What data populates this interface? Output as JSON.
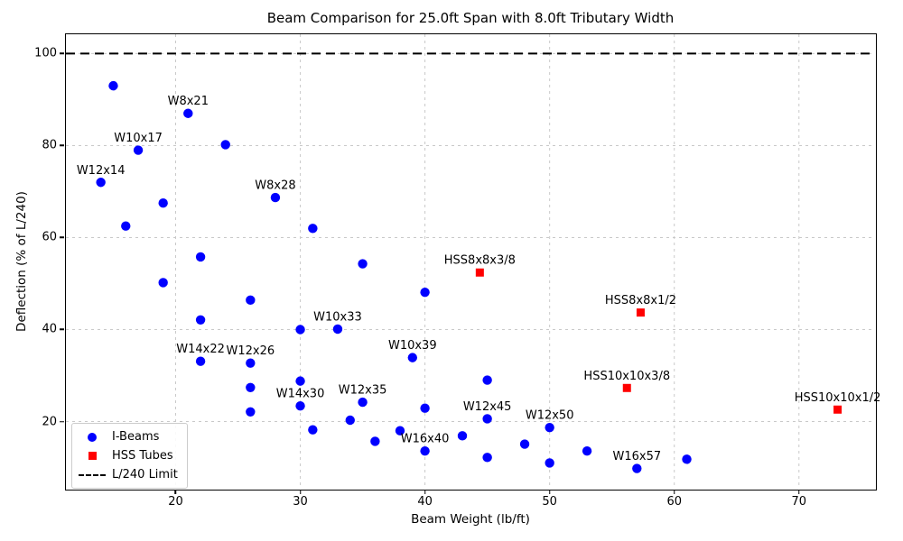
{
  "chart_data": {
    "type": "scatter",
    "title": "Beam Comparison for 25.0ft Span with 8.0ft Tributary Width",
    "xlabel": "Beam Weight (lb/ft)",
    "ylabel": "Deflection (% of L/240)",
    "xlim": [
      11.2,
      76.1
    ],
    "ylim": [
      5.4,
      104.2
    ],
    "xticks": [
      20,
      30,
      40,
      50,
      60,
      70
    ],
    "yticks": [
      20,
      40,
      60,
      80,
      100
    ],
    "grid": true,
    "grid_color": "#c9c9c9",
    "limit_line": {
      "y": 100,
      "label": "L/240 Limit",
      "color": "#000000",
      "style": "dashed"
    },
    "legend": {
      "position": "lower-left",
      "entries": [
        {
          "label": "I-Beams",
          "marker": "circle",
          "color": "#0000ff"
        },
        {
          "label": "HSS Tubes",
          "marker": "square",
          "color": "#ff0000"
        },
        {
          "label": "L/240 Limit",
          "marker": "dashed-line",
          "color": "#000000"
        }
      ]
    },
    "series": [
      {
        "name": "I-Beams",
        "marker": "circle",
        "color": "#0000ff",
        "points": [
          {
            "x": 14,
            "y": 72.0,
            "label": "W12x14"
          },
          {
            "x": 15,
            "y": 93.0
          },
          {
            "x": 16,
            "y": 62.5
          },
          {
            "x": 17,
            "y": 79.0,
            "label": "W10x17"
          },
          {
            "x": 19,
            "y": 67.5
          },
          {
            "x": 19,
            "y": 50.2
          },
          {
            "x": 21,
            "y": 87.0,
            "label": "W8x21"
          },
          {
            "x": 22,
            "y": 55.8
          },
          {
            "x": 22,
            "y": 42.1
          },
          {
            "x": 22,
            "y": 33.1,
            "label": "W14x22"
          },
          {
            "x": 24,
            "y": 80.2
          },
          {
            "x": 26,
            "y": 46.4
          },
          {
            "x": 26,
            "y": 32.7,
            "label": "W12x26"
          },
          {
            "x": 26,
            "y": 27.4
          },
          {
            "x": 26,
            "y": 22.1
          },
          {
            "x": 28,
            "y": 68.7,
            "label": "W8x28"
          },
          {
            "x": 30,
            "y": 40.0
          },
          {
            "x": 30,
            "y": 28.8
          },
          {
            "x": 30,
            "y": 23.4,
            "label": "W14x30"
          },
          {
            "x": 31,
            "y": 62.0
          },
          {
            "x": 31,
            "y": 18.2
          },
          {
            "x": 33,
            "y": 40.1,
            "label": "W10x33"
          },
          {
            "x": 34,
            "y": 20.3
          },
          {
            "x": 35,
            "y": 54.3
          },
          {
            "x": 35,
            "y": 24.2,
            "label": "W12x35"
          },
          {
            "x": 36,
            "y": 15.7
          },
          {
            "x": 38,
            "y": 18.0
          },
          {
            "x": 39,
            "y": 33.9,
            "label": "W10x39"
          },
          {
            "x": 40,
            "y": 48.1
          },
          {
            "x": 40,
            "y": 22.9
          },
          {
            "x": 40,
            "y": 13.6,
            "label": "W16x40"
          },
          {
            "x": 43,
            "y": 16.9
          },
          {
            "x": 45,
            "y": 29.0
          },
          {
            "x": 45,
            "y": 20.6,
            "label": "W12x45"
          },
          {
            "x": 45,
            "y": 12.2
          },
          {
            "x": 48,
            "y": 15.1
          },
          {
            "x": 50,
            "y": 18.7,
            "label": "W12x50"
          },
          {
            "x": 50,
            "y": 11.0
          },
          {
            "x": 53,
            "y": 13.6
          },
          {
            "x": 57,
            "y": 9.8,
            "label": "W16x57"
          },
          {
            "x": 61,
            "y": 11.8
          }
        ]
      },
      {
        "name": "HSS Tubes",
        "marker": "square",
        "color": "#ff0000",
        "points": [
          {
            "x": 44.4,
            "y": 52.4,
            "label": "HSS8x8x3/8"
          },
          {
            "x": 57.3,
            "y": 43.7,
            "label": "HSS8x8x1/2"
          },
          {
            "x": 56.2,
            "y": 27.3,
            "label": "HSS10x10x3/8"
          },
          {
            "x": 73.1,
            "y": 22.6,
            "label": "HSS10x10x1/2"
          }
        ]
      }
    ]
  }
}
